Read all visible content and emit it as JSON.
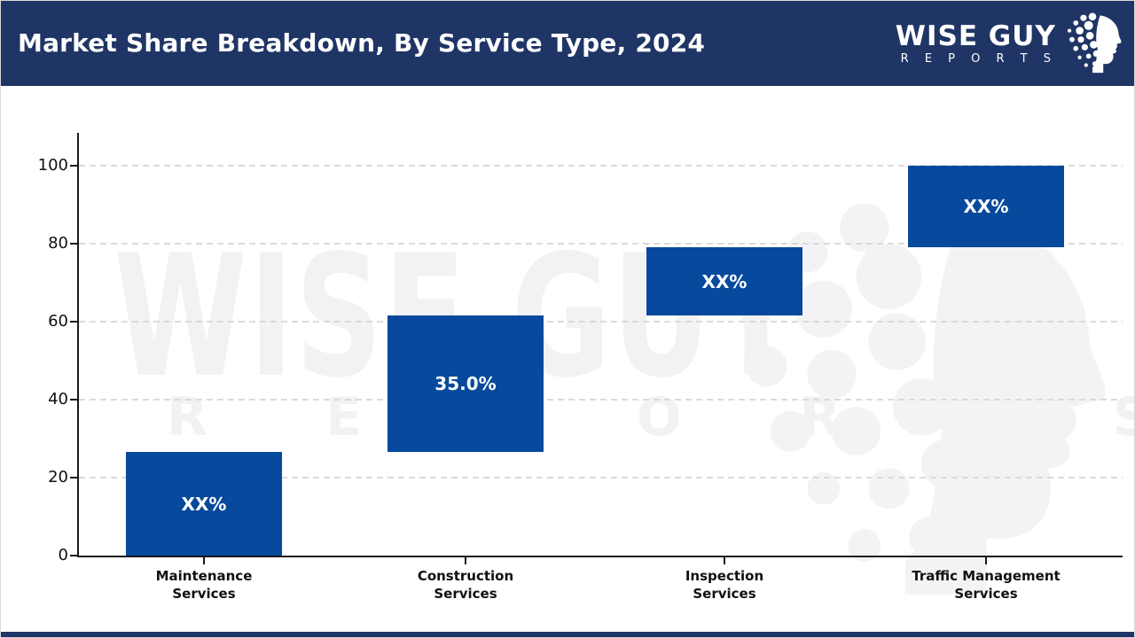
{
  "header": {
    "title": "Market Share Breakdown, By Service Type, 2024",
    "brand": {
      "name_top": "WISE GUY",
      "name_bottom": "R E P O R T S"
    },
    "bg_color": "#1f3565",
    "text_color": "#ffffff"
  },
  "watermark": {
    "line1": "WISE GUY",
    "line2": "R E P O R T S"
  },
  "chart_data": {
    "type": "bar",
    "variant": "waterfall",
    "title": "Market Share Breakdown, By Service Type, 2024",
    "categories": [
      [
        "Maintenance",
        "Services"
      ],
      [
        "Construction",
        "Services"
      ],
      [
        "Inspection",
        "Services"
      ],
      [
        "Traffic Management",
        "Services"
      ]
    ],
    "segments": [
      {
        "name": "Maintenance Services",
        "start": 0,
        "end": 26.5,
        "label": "XX%"
      },
      {
        "name": "Construction Services",
        "start": 26.5,
        "end": 61.5,
        "label": "35.0%",
        "value": 35.0
      },
      {
        "name": "Inspection Services",
        "start": 61.5,
        "end": 79.0,
        "label": "XX%"
      },
      {
        "name": "Traffic Management Services",
        "start": 79.0,
        "end": 100.0,
        "label": "XX%"
      }
    ],
    "ylabel": "",
    "xlabel": "",
    "ylim": [
      0,
      100
    ],
    "yticks": [
      0,
      20,
      40,
      60,
      80,
      100
    ],
    "grid": "horizontal-dashed",
    "legend": "none",
    "bar_color": "#07499c",
    "grid_color": "#dadada",
    "axis_color": "#1a1a1a",
    "label_color_inside": "#ffffff"
  }
}
